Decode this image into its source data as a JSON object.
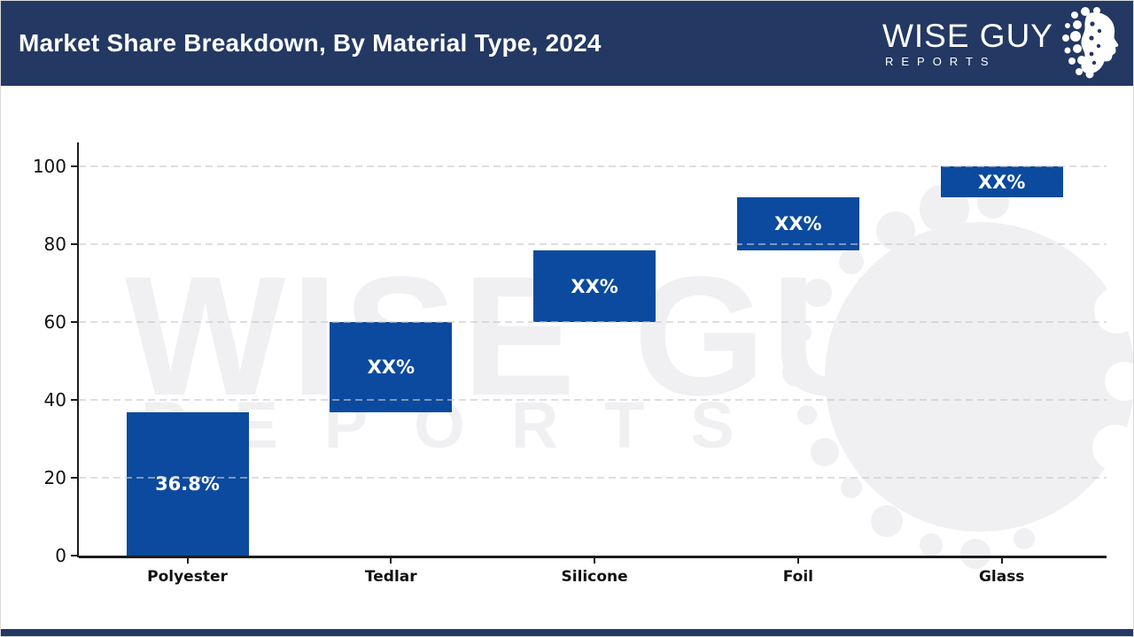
{
  "header": {
    "title": "Market Share Breakdown, By Material Type, 2024",
    "bg_color": "#233862",
    "logo": {
      "name": "WISE GUY",
      "subtitle": "REPORTS"
    }
  },
  "watermark": {
    "name": "WISE GUY",
    "subtitle": "REPORTS"
  },
  "chart_data": {
    "type": "bar",
    "variant": "floating-waterfall",
    "title": "Market Share Breakdown, By Material Type, 2024",
    "categories": [
      "Polyester",
      "Tedlar",
      "Silicone",
      "Foil",
      "Glass"
    ],
    "series": [
      {
        "name": "Cumulative market share (%)",
        "segments": [
          {
            "category": "Polyester",
            "start": 0,
            "end": 36.8,
            "label": "36.8%"
          },
          {
            "category": "Tedlar",
            "start": 36.8,
            "end": 59.9,
            "label": "XX%"
          },
          {
            "category": "Silicone",
            "start": 59.9,
            "end": 78.4,
            "label": "XX%"
          },
          {
            "category": "Foil",
            "start": 78.4,
            "end": 92.0,
            "label": "XX%"
          },
          {
            "category": "Glass",
            "start": 92.0,
            "end": 100.0,
            "label": "XX%"
          }
        ]
      }
    ],
    "xlabel": "",
    "ylabel": "",
    "ylim": [
      0,
      100
    ],
    "yticks": [
      0,
      20,
      40,
      60,
      80,
      100
    ],
    "grid": {
      "horizontal": true,
      "style": "dashed"
    },
    "legend": "none",
    "bar_color": "#0b4a9e",
    "bar_label_color": "#ffffff",
    "axis_color": "#1a1a1a",
    "grid_color": "#d9d9d9",
    "header_color": "#233862"
  }
}
